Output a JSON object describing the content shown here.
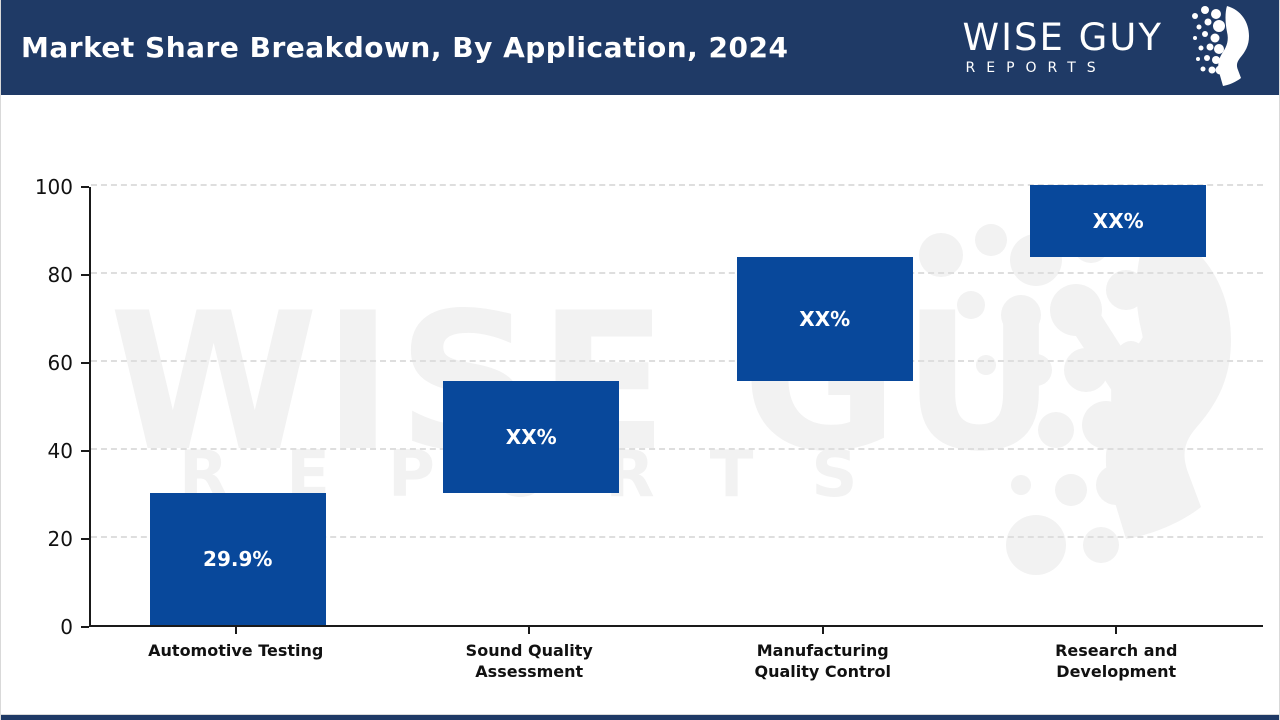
{
  "header": {
    "title": "Market Share Breakdown, By Application, 2024",
    "bg_color": "#1f3a66",
    "logo": {
      "line1": "WISE GUY",
      "line2": "REPORTS"
    }
  },
  "watermark": {
    "line1": "WISE GUY",
    "line2": "REPORTS"
  },
  "chart_data": {
    "type": "bar",
    "subtype": "waterfall-floating-bars",
    "title": "Market Share Breakdown, By Application, 2024",
    "categories": [
      "Automotive Testing",
      "Sound Quality Assessment",
      "Manufacturing Quality Control",
      "Research and Development"
    ],
    "categories_display": [
      "Automotive Testing",
      "Sound Quality\nAssessment",
      "Manufacturing\nQuality Control",
      "Research and\nDevelopment"
    ],
    "segments": [
      {
        "label": "29.9%",
        "start": 0,
        "end": 29.9
      },
      {
        "label": "XX%",
        "start": 29.9,
        "end": 55.4
      },
      {
        "label": "XX%",
        "start": 55.4,
        "end": 83.6
      },
      {
        "label": "XX%",
        "start": 83.6,
        "end": 100
      }
    ],
    "values": [
      29.9,
      25.5,
      28.2,
      16.4
    ],
    "y_ticks": [
      0,
      20,
      40,
      60,
      80,
      100
    ],
    "ylim": [
      0,
      100
    ],
    "xlabel": "",
    "ylabel": "",
    "grid": "horizontal-dashed",
    "legend": "none",
    "bar_color": "#08489b",
    "bar_label_color": "#ffffff",
    "axis_color": "#1a1a1a",
    "gridline_color": "#dedede"
  }
}
